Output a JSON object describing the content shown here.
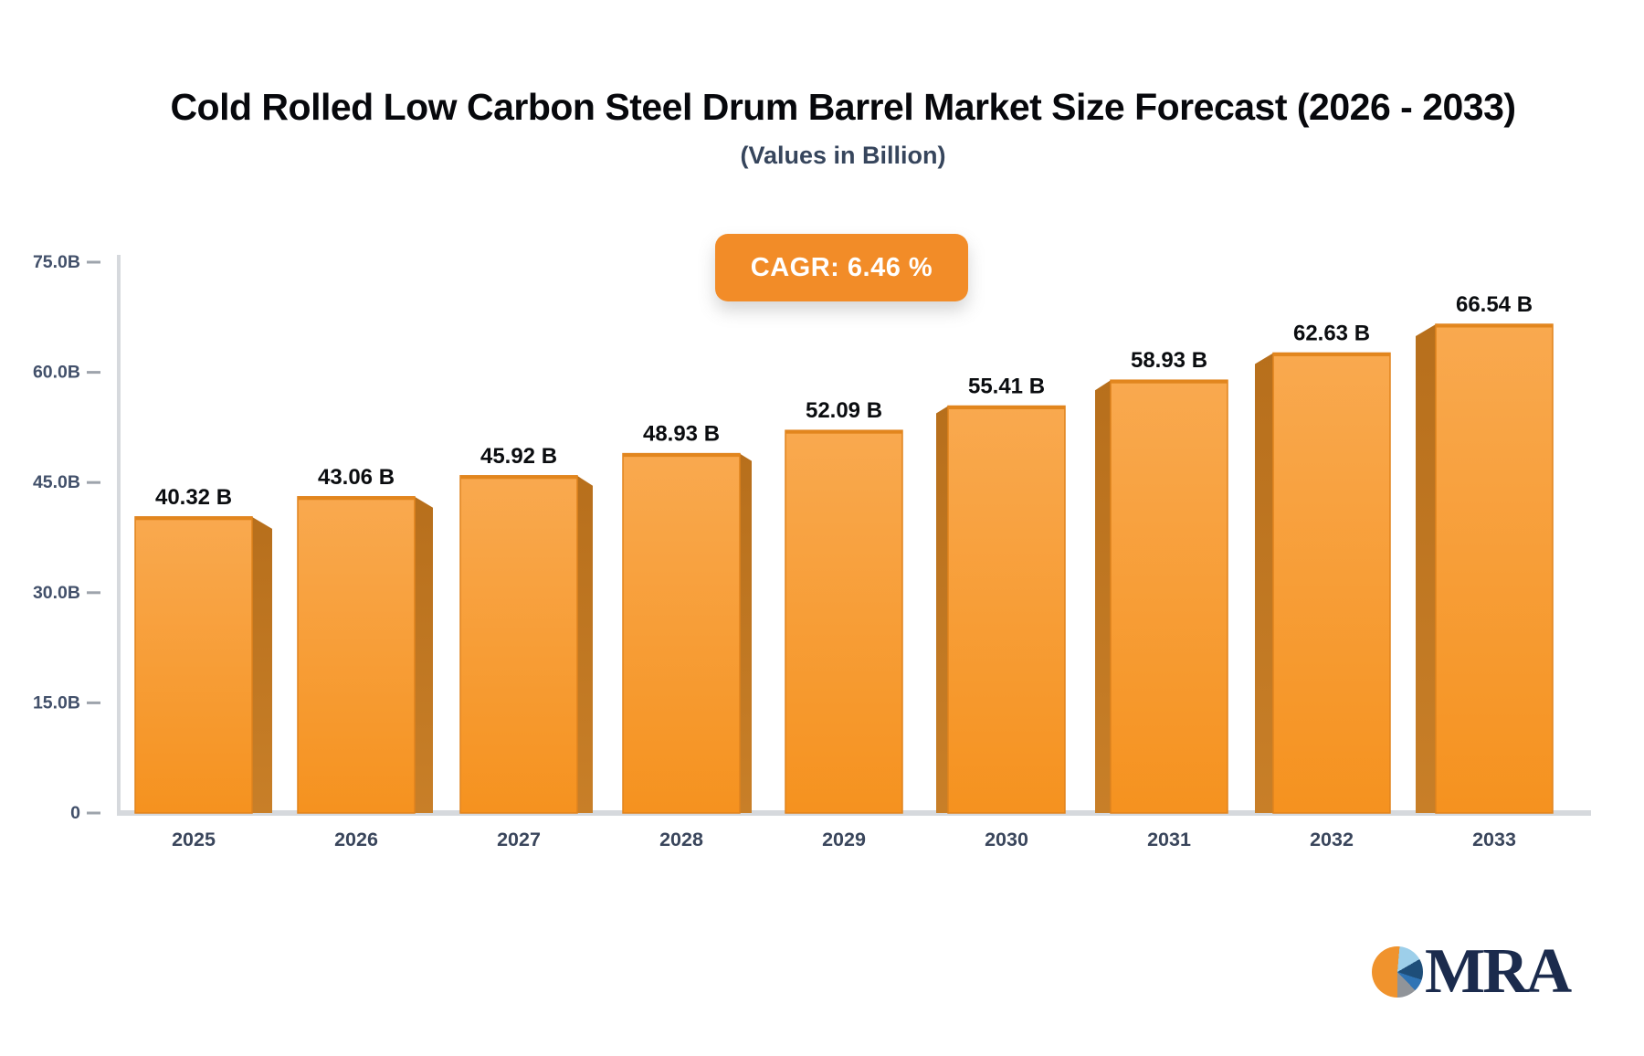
{
  "header": {
    "title": "Cold Rolled Low Carbon Steel Drum Barrel Market Size Forecast (2026 - 2033)",
    "subtitle": "(Values in Billion)",
    "cagr_badge": "CAGR: 6.46 %"
  },
  "chart_data": {
    "type": "bar",
    "title": "Cold Rolled Low Carbon Steel Drum Barrel Market Size Forecast (2026 - 2033)",
    "subtitle": "(Values in Billion)",
    "cagr_text": "CAGR: 6.46 %",
    "categories": [
      "2025",
      "2026",
      "2027",
      "2028",
      "2029",
      "2030",
      "2031",
      "2032",
      "2033"
    ],
    "values": [
      40.32,
      43.06,
      45.92,
      48.93,
      52.09,
      55.41,
      58.93,
      62.63,
      66.54
    ],
    "value_labels": [
      "40.32 B",
      "43.06 B",
      "45.92 B",
      "48.93 B",
      "52.09 B",
      "55.41 B",
      "58.93 B",
      "62.63 B",
      "66.54 B"
    ],
    "unit": "Billion",
    "xlabel": "",
    "ylabel": "",
    "ylim": [
      0,
      75
    ],
    "y_ticks": [
      {
        "value": 0,
        "label": "0"
      },
      {
        "value": 15,
        "label": "15.0B"
      },
      {
        "value": 30,
        "label": "30.0B"
      },
      {
        "value": 45,
        "label": "45.0B"
      },
      {
        "value": 60,
        "label": "60.0B"
      },
      {
        "value": 75,
        "label": "75.0B"
      }
    ],
    "grid": "off",
    "legend": "none",
    "colors": {
      "bar_gradient_top": "#f9a94f",
      "bar_gradient_bottom": "#f5921f",
      "bar_top_edge": "#e2861e",
      "bar_side_top": "#b76f1c",
      "bar_side_bottom": "#c87f28",
      "bar_outline": "#e0831d",
      "axis_line": "#d6d9dd",
      "tick_dash": "#9ea4ac",
      "y_label_text": "#42506a",
      "x_label_text": "#3a465c",
      "value_label_text": "#0b0d10",
      "badge_background": "#f28c28",
      "badge_text": "#ffffff"
    }
  },
  "logo": {
    "text": "MRA",
    "text_color": "#1b2b4d",
    "pie_colors": [
      "#f0932d",
      "#9dcfea",
      "#1e4e79",
      "#2f74b5",
      "#909499"
    ]
  }
}
